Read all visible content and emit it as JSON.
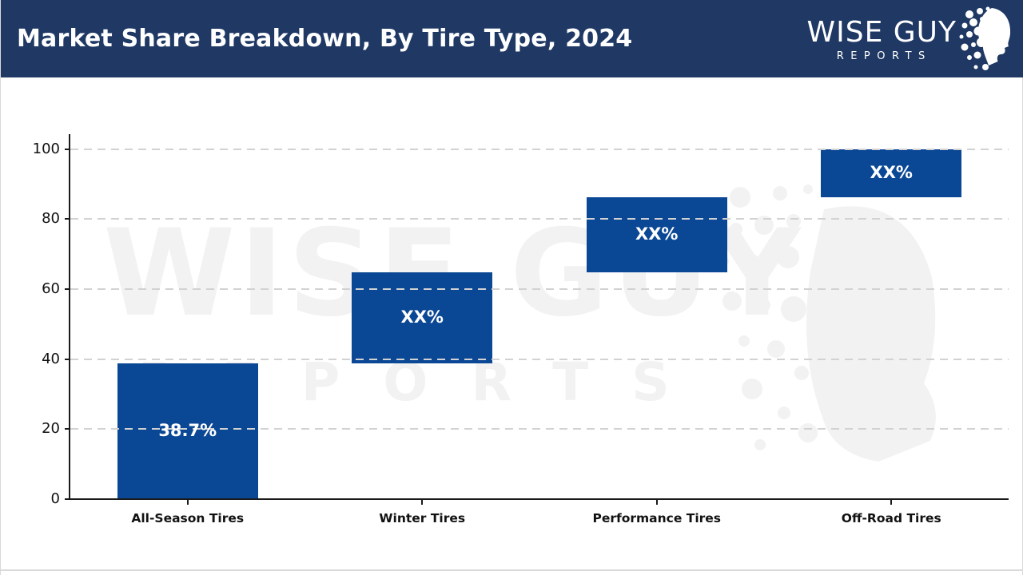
{
  "header": {
    "title": "Market Share Breakdown, By Tire Type, 2024",
    "logo": {
      "line1": "WISE GUY",
      "line2": "REPORTS"
    }
  },
  "watermark": {
    "line1": "WISE GUY",
    "line2": "REPORTS"
  },
  "colors": {
    "header_bg": "#1f3864",
    "bar": "#0a4795",
    "grid": "#d2d2d2",
    "axis": "#1a1a1a",
    "bar_label": "#ffffff",
    "watermark": "#f2f2f2"
  },
  "chart_data": {
    "type": "bar",
    "subtype": "waterfall-floating-bars",
    "title": "Market Share Breakdown, By Tire Type, 2024",
    "xlabel": "",
    "ylabel": "",
    "categories": [
      "All-Season Tires",
      "Winter Tires",
      "Performance Tires",
      "Off-Road Tires"
    ],
    "segments": [
      {
        "category": "All-Season Tires",
        "start": 0,
        "end": 38.7,
        "label": "38.7%"
      },
      {
        "category": "Winter Tires",
        "start": 38.7,
        "end": 64.8,
        "label": "XX%"
      },
      {
        "category": "Performance Tires",
        "start": 64.8,
        "end": 86.2,
        "label": "XX%"
      },
      {
        "category": "Off-Road Tires",
        "start": 86.2,
        "end": 100,
        "label": "XX%"
      }
    ],
    "yticks": [
      0,
      20,
      40,
      60,
      80,
      100
    ],
    "ylim": [
      0,
      104
    ],
    "grid": "horizontal dashed, drawn over bars",
    "legend": "none",
    "bar_color": "#0a4795"
  }
}
